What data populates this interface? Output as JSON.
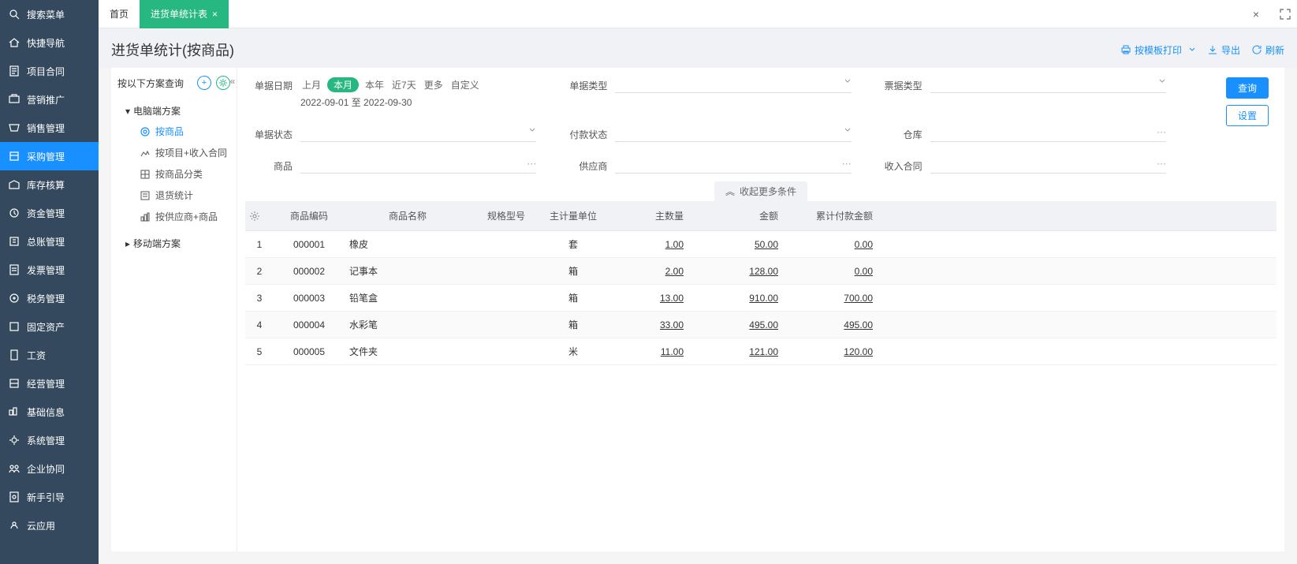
{
  "colors": {
    "sidebar_bg": "#34495e",
    "accent_blue": "#1890ff",
    "accent_green": "#26b880",
    "text": "#333333",
    "muted": "#888888",
    "bg": "#f0f2f5"
  },
  "sidebar": {
    "items": [
      {
        "label": "搜索菜单",
        "active": false
      },
      {
        "label": "快捷导航",
        "active": false
      },
      {
        "label": "项目合同",
        "active": false
      },
      {
        "label": "营销推广",
        "active": false
      },
      {
        "label": "销售管理",
        "active": false
      },
      {
        "label": "采购管理",
        "active": true
      },
      {
        "label": "库存核算",
        "active": false
      },
      {
        "label": "资金管理",
        "active": false
      },
      {
        "label": "总账管理",
        "active": false
      },
      {
        "label": "发票管理",
        "active": false
      },
      {
        "label": "税务管理",
        "active": false
      },
      {
        "label": "固定资产",
        "active": false
      },
      {
        "label": "工资",
        "active": false
      },
      {
        "label": "经营管理",
        "active": false
      },
      {
        "label": "基础信息",
        "active": false
      },
      {
        "label": "系统管理",
        "active": false
      },
      {
        "label": "企业协同",
        "active": false
      },
      {
        "label": "新手引导",
        "active": false
      },
      {
        "label": "云应用",
        "active": false
      }
    ]
  },
  "tabs": {
    "home_label": "首页",
    "active_label": "进货单统计表"
  },
  "page_title": "进货单统计(按商品)",
  "header_actions": {
    "print": "按模板打印",
    "export": "导出",
    "refresh": "刷新"
  },
  "filter_panel": {
    "title": "按以下方案查询",
    "group1": "电脑端方案",
    "group2": "移动端方案",
    "items": [
      {
        "label": "按商品",
        "active": true
      },
      {
        "label": "按项目+收入合同",
        "active": false
      },
      {
        "label": "按商品分类",
        "active": false
      },
      {
        "label": "退货统计",
        "active": false
      },
      {
        "label": "按供应商+商品",
        "active": false
      }
    ]
  },
  "conditions": {
    "date_label": "单据日期",
    "date_tabs": {
      "last_month": "上月",
      "this_month": "本月",
      "this_year": "本年",
      "last_7": "近7天",
      "more": "更多",
      "custom": "自定义"
    },
    "date_range": "2022-09-01 至 2022-09-30",
    "doc_type_label": "单据类型",
    "invoice_type_label": "票据类型",
    "doc_status_label": "单据状态",
    "pay_status_label": "付款状态",
    "warehouse_label": "仓库",
    "product_label": "商品",
    "supplier_label": "供应商",
    "income_contract_label": "收入合同",
    "query_btn": "查询",
    "setting_btn": "设置",
    "collapse": "收起更多条件"
  },
  "table": {
    "columns": {
      "code": "商品编码",
      "name": "商品名称",
      "spec": "规格型号",
      "unit": "主计量单位",
      "qty": "主数量",
      "amount": "金额",
      "paid": "累计付款金额"
    },
    "rows": [
      {
        "idx": "1",
        "code": "000001",
        "name": "橡皮",
        "unit": "套",
        "qty": "1.00",
        "amount": "50.00",
        "paid": "0.00"
      },
      {
        "idx": "2",
        "code": "000002",
        "name": "记事本",
        "unit": "箱",
        "qty": "2.00",
        "amount": "128.00",
        "paid": "0.00"
      },
      {
        "idx": "3",
        "code": "000003",
        "name": "铅笔盒",
        "unit": "箱",
        "qty": "13.00",
        "amount": "910.00",
        "paid": "700.00"
      },
      {
        "idx": "4",
        "code": "000004",
        "name": "水彩笔",
        "unit": "箱",
        "qty": "33.00",
        "amount": "495.00",
        "paid": "495.00"
      },
      {
        "idx": "5",
        "code": "000005",
        "name": "文件夹",
        "unit": "米",
        "qty": "11.00",
        "amount": "121.00",
        "paid": "120.00"
      }
    ]
  }
}
